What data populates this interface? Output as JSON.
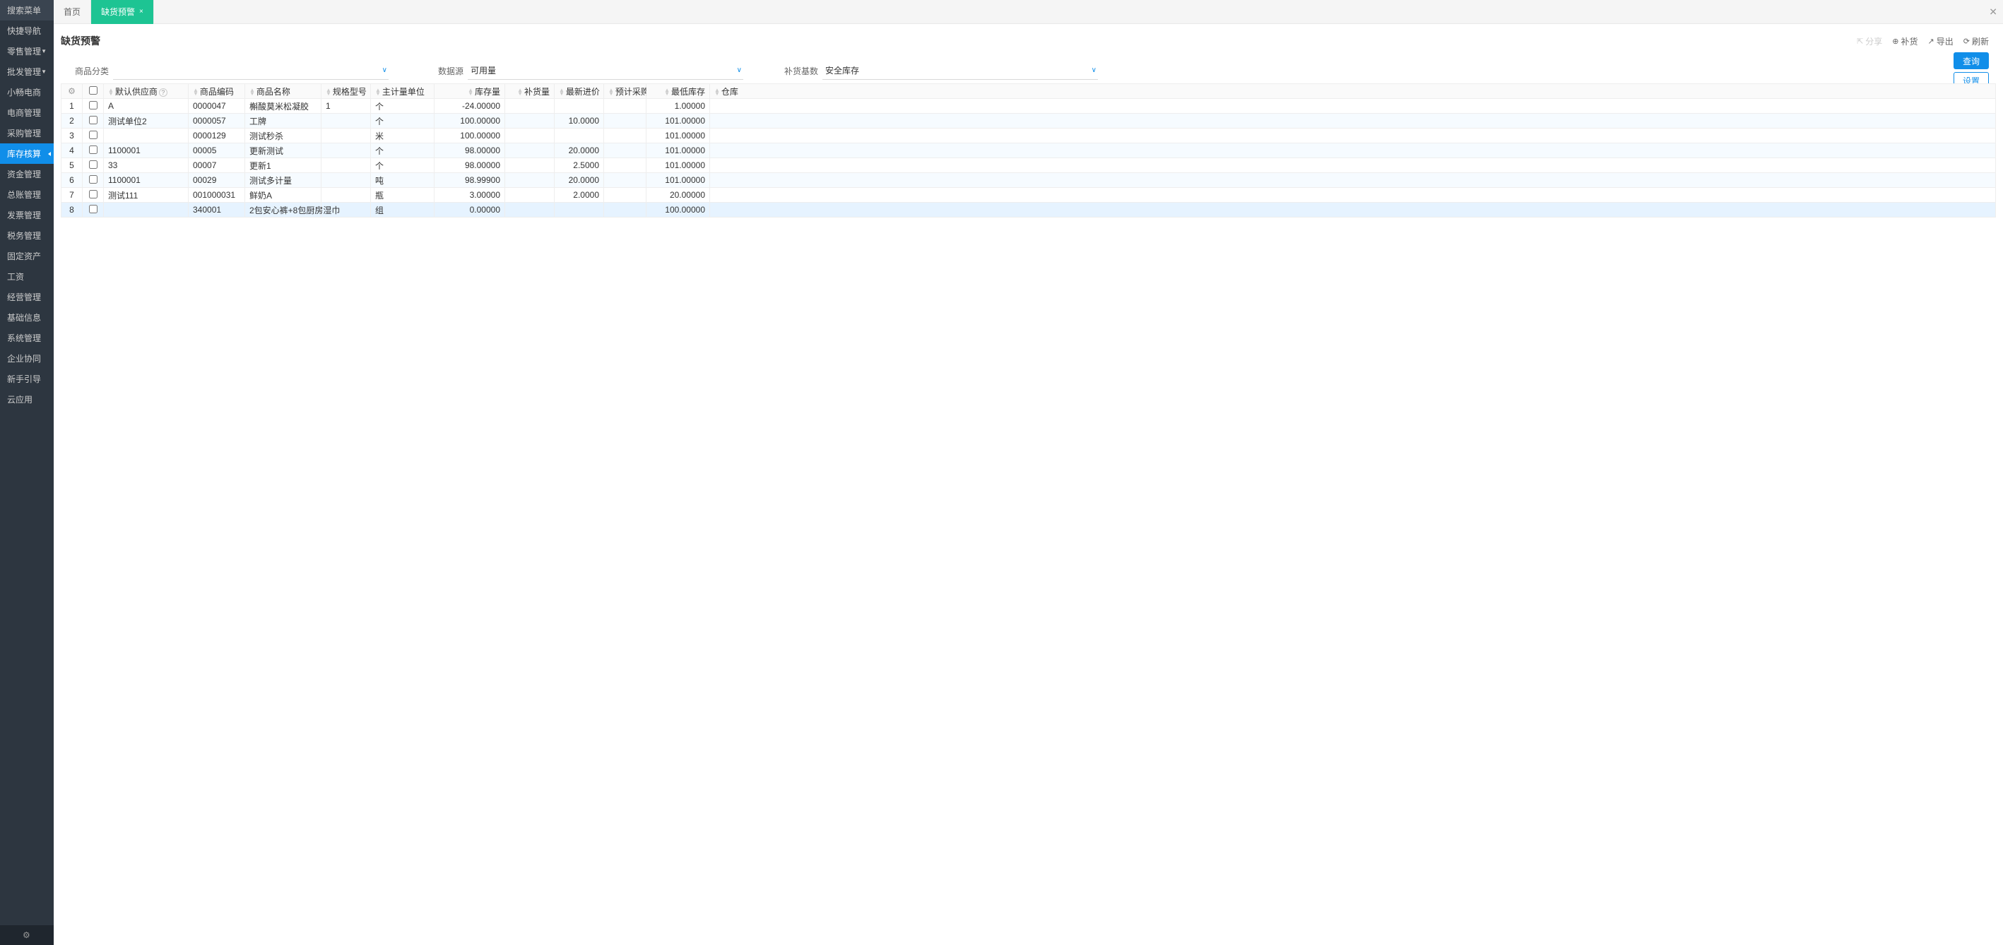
{
  "sidebar": {
    "items": [
      {
        "label": "搜索菜单",
        "expandable": false
      },
      {
        "label": "快捷导航",
        "expandable": false
      },
      {
        "label": "零售管理",
        "expandable": true
      },
      {
        "label": "批发管理",
        "expandable": true
      },
      {
        "label": "小畅电商",
        "expandable": false
      },
      {
        "label": "电商管理",
        "expandable": false
      },
      {
        "label": "采购管理",
        "expandable": false
      },
      {
        "label": "库存核算",
        "expandable": false,
        "active": true
      },
      {
        "label": "资金管理",
        "expandable": false
      },
      {
        "label": "总账管理",
        "expandable": false
      },
      {
        "label": "发票管理",
        "expandable": false
      },
      {
        "label": "税务管理",
        "expandable": false
      },
      {
        "label": "固定资产",
        "expandable": false
      },
      {
        "label": "工资",
        "expandable": false
      },
      {
        "label": "经营管理",
        "expandable": false
      },
      {
        "label": "基础信息",
        "expandable": false
      },
      {
        "label": "系统管理",
        "expandable": false
      },
      {
        "label": "企业协同",
        "expandable": false
      },
      {
        "label": "新手引导",
        "expandable": false
      },
      {
        "label": "云应用",
        "expandable": false
      }
    ]
  },
  "tabs": [
    {
      "label": "首页",
      "closable": false
    },
    {
      "label": "缺货预警",
      "closable": true,
      "active": true
    }
  ],
  "page": {
    "title": "缺货预警",
    "actions": {
      "share": "分享",
      "replenish": "补货",
      "export": "导出",
      "refresh": "刷新"
    }
  },
  "filters": {
    "category_label": "商品分类",
    "category_value": "",
    "source_label": "数据源",
    "source_value": "可用量",
    "basis_label": "补货基数",
    "basis_value": "安全库存",
    "query_btn": "查询",
    "settings_btn": "设置"
  },
  "table": {
    "columns": {
      "supplier": "默认供应商",
      "code": "商品编码",
      "name": "商品名称",
      "spec": "规格型号",
      "unit": "主计量单位",
      "stock": "库存量",
      "replen": "补货量",
      "price": "最新进价",
      "est": "预计采购...",
      "min": "最低库存",
      "wh": "仓库"
    },
    "rows": [
      {
        "idx": "1",
        "supplier": "A",
        "code": "0000047",
        "name": "槲酸莫米松凝胶",
        "spec": "1",
        "unit": "个",
        "stock": "-24.00000",
        "replen": "",
        "price": "",
        "est": "",
        "min": "1.00000",
        "wh": ""
      },
      {
        "idx": "2",
        "supplier": "测试单位2",
        "code": "0000057",
        "name": "工牌",
        "spec": "",
        "unit": "个",
        "stock": "100.00000",
        "replen": "",
        "price": "10.0000",
        "est": "",
        "min": "101.00000",
        "wh": ""
      },
      {
        "idx": "3",
        "supplier": "",
        "code": "0000129",
        "name": "测试秒杀",
        "spec": "",
        "unit": "米",
        "stock": "100.00000",
        "replen": "",
        "price": "",
        "est": "",
        "min": "101.00000",
        "wh": ""
      },
      {
        "idx": "4",
        "supplier": "1100001",
        "code": "00005",
        "name": "更新测试",
        "spec": "",
        "unit": "个",
        "stock": "98.00000",
        "replen": "",
        "price": "20.0000",
        "est": "",
        "min": "101.00000",
        "wh": ""
      },
      {
        "idx": "5",
        "supplier": "33",
        "code": "00007",
        "name": "更新1",
        "spec": "",
        "unit": "个",
        "stock": "98.00000",
        "replen": "",
        "price": "2.5000",
        "est": "",
        "min": "101.00000",
        "wh": ""
      },
      {
        "idx": "6",
        "supplier": "1100001",
        "code": "00029",
        "name": "测试多计量",
        "spec": "",
        "unit": "吨",
        "stock": "98.99900",
        "replen": "",
        "price": "20.0000",
        "est": "",
        "min": "101.00000",
        "wh": ""
      },
      {
        "idx": "7",
        "supplier": "测试111",
        "code": "001000031",
        "name": "鲜奶A",
        "spec": "",
        "unit": "瓶",
        "stock": "3.00000",
        "replen": "",
        "price": "2.0000",
        "est": "",
        "min": "20.00000",
        "wh": ""
      },
      {
        "idx": "8",
        "supplier": "",
        "code": "340001",
        "name": "2包安心裤+8包厨房湿巾",
        "spec": "",
        "unit": "组",
        "stock": "0.00000",
        "replen": "",
        "price": "",
        "est": "",
        "min": "100.00000",
        "wh": "",
        "highlight": true
      }
    ]
  }
}
